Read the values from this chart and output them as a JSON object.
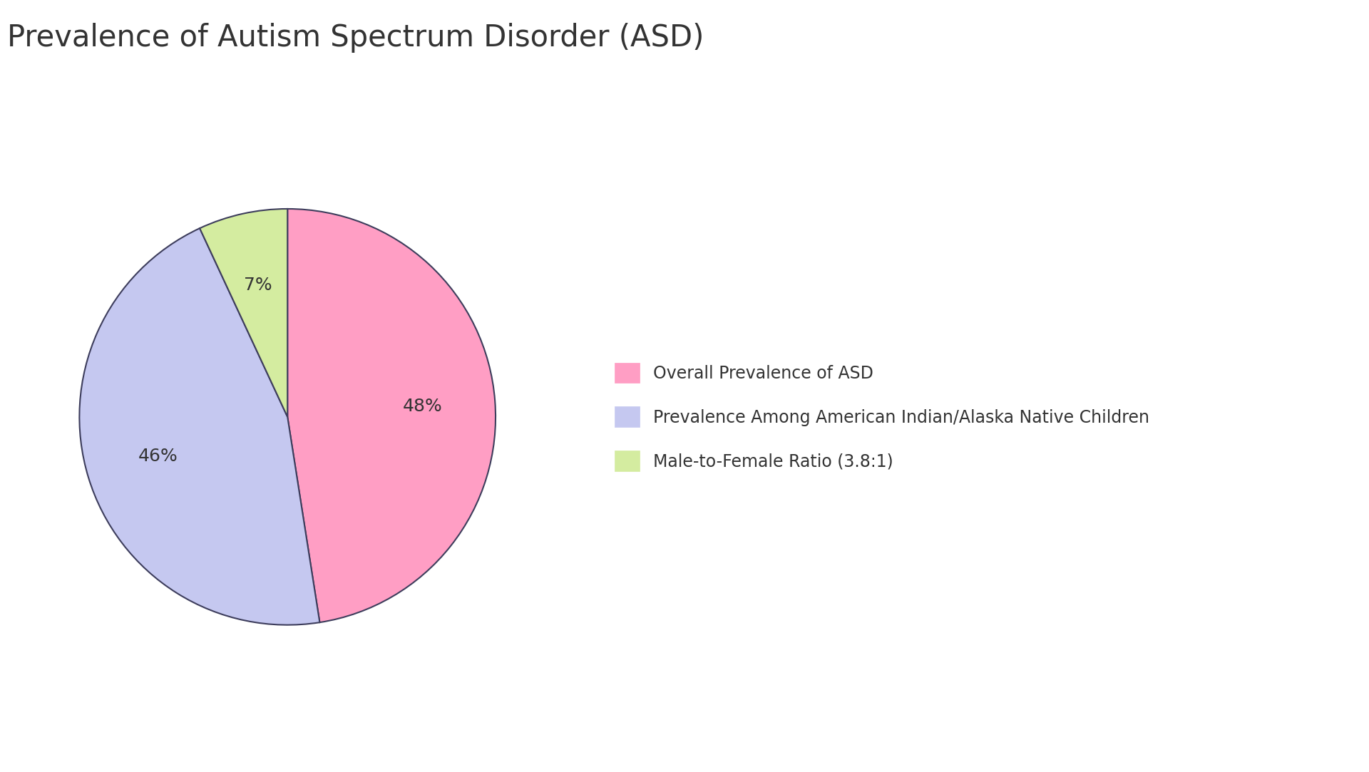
{
  "title": "Prevalence of Autism Spectrum Disorder (ASD)",
  "slices": [
    48,
    46,
    7
  ],
  "labels": [
    "Overall Prevalence of ASD",
    "Prevalence Among American Indian/Alaska Native Children",
    "Male-to-Female Ratio (3.8:1)"
  ],
  "colors": [
    "#FF9EC4",
    "#C5C8F0",
    "#D4ECA0"
  ],
  "edge_color": "#3d3d5c",
  "title_fontsize": 30,
  "autopct_fontsize": 18,
  "background_color": "#ffffff",
  "text_color": "#333333",
  "legend_fontsize": 17,
  "startangle": 90
}
